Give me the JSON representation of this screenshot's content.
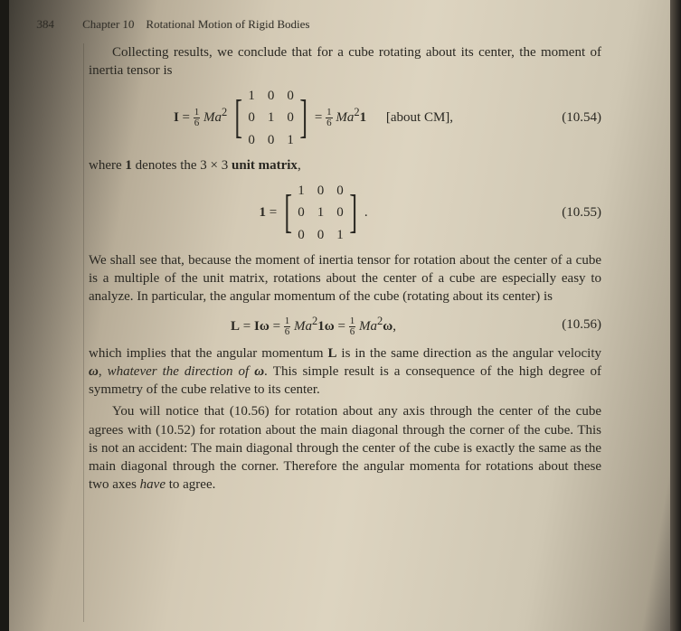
{
  "header": {
    "page_number": "384",
    "chapter_label": "Chapter 10",
    "chapter_title": "Rotational Motion of Rigid Bodies"
  },
  "para1": "Collecting results, we conclude that for a cube rotating about its center, the moment of inertia tensor is",
  "eq1": {
    "lhs": "I",
    "frac_n": "1",
    "frac_d": "6",
    "Ma2": "Ma",
    "sup2": "2",
    "matrix": [
      "1",
      "0",
      "0",
      "0",
      "1",
      "0",
      "0",
      "0",
      "1"
    ],
    "rhs_frac_n": "1",
    "rhs_frac_d": "6",
    "rhs_Ma2": "Ma",
    "rhs_sup2": "2",
    "unit": "1",
    "label": "[about CM],",
    "num": "(10.54)"
  },
  "para2a": "where ",
  "para2b": " denotes the 3 × 3 ",
  "para2_bold1": "1",
  "para2_bold2": "unit matrix",
  "para2c": ",",
  "eq2": {
    "lhs": "1",
    "matrix": [
      "1",
      "0",
      "0",
      "0",
      "1",
      "0",
      "0",
      "0",
      "1"
    ],
    "dot": ".",
    "num": "(10.55)"
  },
  "para3": "We shall see that, because the moment of inertia tensor for rotation about the center of a cube is a multiple of the unit matrix, rotations about the center of a cube are especially easy to analyze. In particular, the angular momentum of the cube (rotating about its center) is",
  "eq3": {
    "text_a": "L = Iω = ",
    "frac1_n": "1",
    "frac1_d": "6",
    "mid_a": "Ma",
    "sup_a": "2",
    "one_bold": "1",
    "omega1": "ω = ",
    "frac2_n": "1",
    "frac2_d": "6",
    "mid_b": "Ma",
    "sup_b": "2",
    "omega2": "ω",
    "comma": ",",
    "num": "(10.56)"
  },
  "para4_a": "which implies that the angular momentum ",
  "para4_L": "L",
  "para4_b": " is in the same direction as the angular velocity ",
  "para4_w": "ω",
  "para4_c": ", ",
  "para4_ital": "whatever the direction of ",
  "para4_w2": "ω",
  "para4_d": ". This simple result is a consequence of the high degree of symmetry of the cube relative to its center.",
  "para5_a": "You will notice that (10.56) for rotation about any axis through the center of the cube agrees with (10.52) for rotation about the main diagonal through the corner of the cube. This is not an accident: The main diagonal through the center of the cube is exactly the same as the main diagonal through the corner. Therefore the angular momenta for rotations about these two axes ",
  "para5_ital": "have",
  "para5_b": " to agree.",
  "colors": {
    "text": "#2a2822"
  }
}
